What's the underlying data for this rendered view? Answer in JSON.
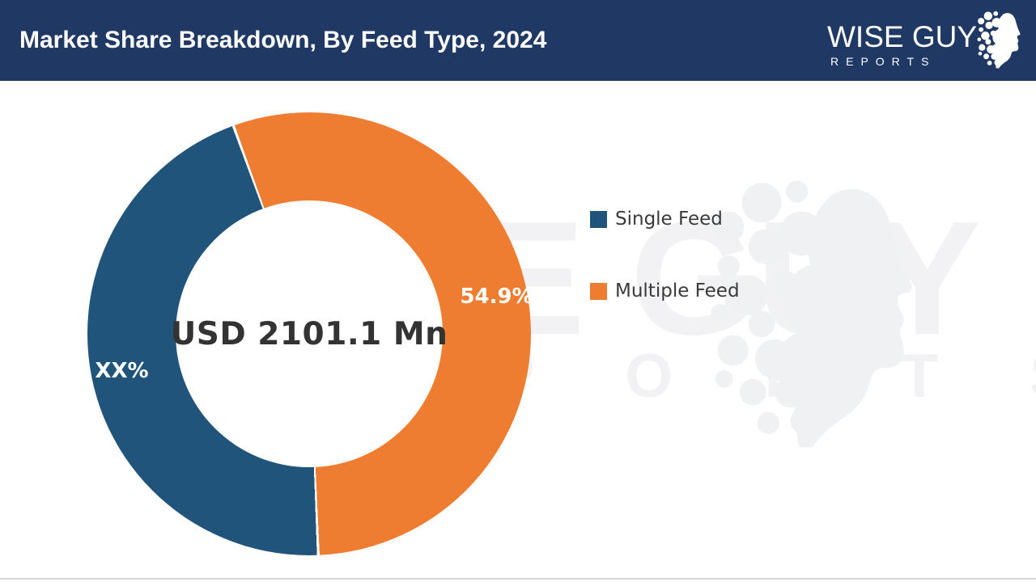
{
  "header": {
    "title": "Market Share Breakdown, By Feed Type, 2024",
    "background_color": "#203864",
    "logo": {
      "line1": "WISE GUY",
      "line2": "REPORTS"
    }
  },
  "chart_data": {
    "type": "pie",
    "donut": true,
    "title": "Market Share Breakdown, By Feed Type, 2024",
    "center_label": "USD 2101.1 Mn",
    "start_angle": -20,
    "slices": [
      {
        "label": "Multiple Feed",
        "value": 54.9,
        "display": "54.9%",
        "color": "#ee7d31"
      },
      {
        "label": "Single Feed",
        "value": 45.1,
        "display": "XX%",
        "color": "#20547a"
      }
    ],
    "legend_position": "right",
    "legend": [
      {
        "label": "Single Feed"
      },
      {
        "label": "Multiple Feed"
      }
    ]
  },
  "watermark": {
    "line1": "WISE GUY",
    "line2": "R E P O R T S"
  }
}
